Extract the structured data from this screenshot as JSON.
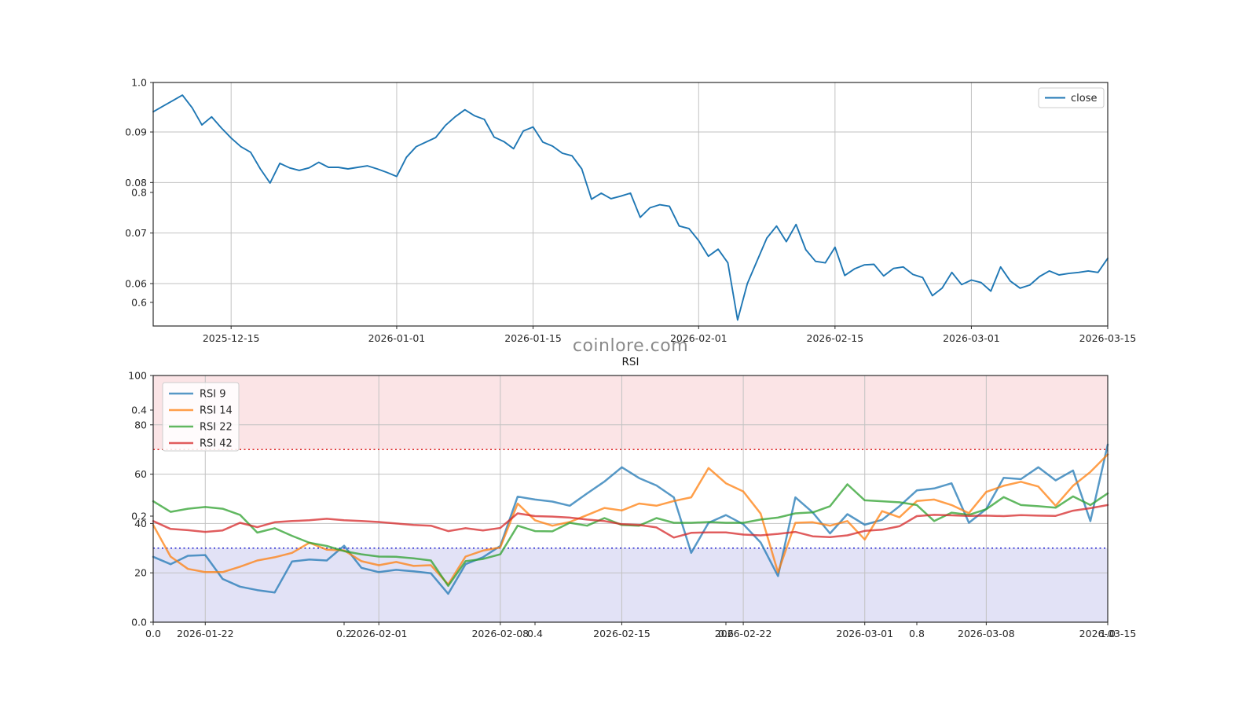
{
  "watermark": {
    "text": "coinlore.com"
  },
  "colors": {
    "close_line": "#1f77b4",
    "rsi9": "#1f77b4",
    "rsi14": "#ff7f0e",
    "rsi22": "#2ca02c",
    "rsi42": "#d62728",
    "overbought_band": "#fbe4e6",
    "oversold_band": "#e2e2f6",
    "overbought_line": "#dd2222",
    "oversold_line": "#2222cc",
    "grid": "#c2c2c2",
    "spine": "#2b2b2b",
    "tick_text": "#262626",
    "legend_border": "#cccccc"
  },
  "chart_data": [
    {
      "type": "line",
      "title": "",
      "ylabel": "",
      "xlabel": "",
      "grid": true,
      "ylim": [
        0.0516,
        0.0998
      ],
      "yticks": [
        0.09,
        0.08,
        0.07,
        0.06
      ],
      "ytick_labels": [
        "0.09",
        "0.08",
        "0.07",
        "0.06"
      ],
      "yticks_secondary": {
        "lim": [
          0.557,
          1.0
        ],
        "labels": [
          "1.0",
          "0.8",
          "0.6"
        ],
        "values": [
          1.0,
          0.8,
          0.6
        ]
      },
      "xticks": [
        "2025-12-15",
        "2026-01-01",
        "2026-01-15",
        "2026-02-01",
        "2026-02-15",
        "2026-03-01",
        "2026-03-15"
      ],
      "legend": {
        "position": "upper right",
        "entries": [
          "close"
        ]
      },
      "series": [
        {
          "name": "close",
          "color_key": "close_line",
          "dates": [
            "2025-12-07",
            "2025-12-08",
            "2025-12-09",
            "2025-12-10",
            "2025-12-11",
            "2025-12-12",
            "2025-12-13",
            "2025-12-14",
            "2025-12-15",
            "2025-12-16",
            "2025-12-17",
            "2025-12-18",
            "2025-12-19",
            "2025-12-20",
            "2025-12-21",
            "2025-12-22",
            "2025-12-23",
            "2025-12-24",
            "2025-12-25",
            "2025-12-26",
            "2025-12-27",
            "2025-12-28",
            "2025-12-29",
            "2025-12-30",
            "2025-12-31",
            "2026-01-01",
            "2026-01-02",
            "2026-01-03",
            "2026-01-04",
            "2026-01-05",
            "2026-01-06",
            "2026-01-07",
            "2026-01-08",
            "2026-01-09",
            "2026-01-10",
            "2026-01-11",
            "2026-01-12",
            "2026-01-13",
            "2026-01-14",
            "2026-01-15",
            "2026-01-16",
            "2026-01-17",
            "2026-01-18",
            "2026-01-19",
            "2026-01-20",
            "2026-01-21",
            "2026-01-22",
            "2026-01-23",
            "2026-01-24",
            "2026-01-25",
            "2026-01-26",
            "2026-01-27",
            "2026-01-28",
            "2026-01-29",
            "2026-01-30",
            "2026-01-31",
            "2026-02-01",
            "2026-02-02",
            "2026-02-03",
            "2026-02-04",
            "2026-02-05",
            "2026-02-06",
            "2026-02-07",
            "2026-02-08",
            "2026-02-09",
            "2026-02-10",
            "2026-02-11",
            "2026-02-12",
            "2026-02-13",
            "2026-02-14",
            "2026-02-15",
            "2026-02-16",
            "2026-02-17",
            "2026-02-18",
            "2026-02-19",
            "2026-02-20",
            "2026-02-21",
            "2026-02-22",
            "2026-02-23",
            "2026-02-24",
            "2026-02-25",
            "2026-02-26",
            "2026-02-27",
            "2026-02-28",
            "2026-03-01",
            "2026-03-02",
            "2026-03-03",
            "2026-03-04",
            "2026-03-05",
            "2026-03-06",
            "2026-03-07",
            "2026-03-08",
            "2026-03-09",
            "2026-03-10",
            "2026-03-11",
            "2026-03-12",
            "2026-03-13",
            "2026-03-14",
            "2026-03-15"
          ],
          "values": [
            0.094,
            0.0951,
            0.0962,
            0.0973,
            0.0948,
            0.0914,
            0.093,
            0.0908,
            0.0888,
            0.0871,
            0.086,
            0.0827,
            0.0799,
            0.0838,
            0.0829,
            0.0824,
            0.0829,
            0.084,
            0.083,
            0.083,
            0.0827,
            0.083,
            0.0833,
            0.0827,
            0.082,
            0.0812,
            0.085,
            0.0871,
            0.088,
            0.0889,
            0.0913,
            0.093,
            0.0944,
            0.0932,
            0.0925,
            0.089,
            0.0881,
            0.0867,
            0.0902,
            0.091,
            0.088,
            0.0872,
            0.0858,
            0.0853,
            0.0827,
            0.0767,
            0.0779,
            0.0768,
            0.0773,
            0.0779,
            0.0731,
            0.075,
            0.0756,
            0.0753,
            0.0714,
            0.0709,
            0.0685,
            0.0654,
            0.0668,
            0.0641,
            0.0528,
            0.06,
            0.0645,
            0.069,
            0.0714,
            0.0683,
            0.0717,
            0.0667,
            0.0644,
            0.0641,
            0.0672,
            0.0616,
            0.0629,
            0.0637,
            0.0638,
            0.0615,
            0.063,
            0.0633,
            0.0618,
            0.0612,
            0.0576,
            0.0591,
            0.0622,
            0.0598,
            0.0607,
            0.0602,
            0.0585,
            0.0633,
            0.0605,
            0.0591,
            0.0597,
            0.0614,
            0.0625,
            0.0617,
            0.062,
            0.0622,
            0.0625,
            0.0622,
            0.065
          ]
        }
      ]
    },
    {
      "type": "line",
      "title": "RSI",
      "ylabel": "",
      "xlabel": "",
      "grid": true,
      "ylim": [
        0,
        100
      ],
      "yticks": [
        100,
        80,
        60,
        40,
        20
      ],
      "ytick_labels": [
        "100",
        "80",
        "60",
        "40",
        "20"
      ],
      "yticks_secondary": {
        "labels": [
          "0.4",
          "0.2",
          "0.0"
        ],
        "values": [
          0.4,
          0.2,
          0.0
        ]
      },
      "xticks": [
        "2026-01-22",
        "2026-02-01",
        "2026-02-08",
        "2026-02-15",
        "2026-02-22",
        "2026-03-01",
        "2026-03-08",
        "2026-03-15"
      ],
      "xticks_secondary": {
        "labels": [
          "0.0",
          "0.2",
          "0.4",
          "0.6",
          "0.8",
          "1.0"
        ],
        "values": [
          0.0,
          0.2,
          0.4,
          0.6,
          0.8,
          1.0
        ]
      },
      "hlines": [
        {
          "y": 70,
          "style": "dotted",
          "color_key": "overbought_line",
          "meaning": "overbought-threshold"
        },
        {
          "y": 30,
          "style": "dotted",
          "color_key": "oversold_line",
          "meaning": "oversold-threshold"
        }
      ],
      "bands": [
        {
          "from": 70,
          "to": 100,
          "color_key": "overbought_band",
          "meaning": "overbought-zone"
        },
        {
          "from": 0,
          "to": 30,
          "color_key": "oversold_band",
          "meaning": "oversold-zone"
        }
      ],
      "legend": {
        "position": "upper left",
        "entries": [
          "RSI 9",
          "RSI 14",
          "RSI 22",
          "RSI 42"
        ]
      },
      "dates": [
        "2026-01-19",
        "2026-01-20",
        "2026-01-21",
        "2026-01-22",
        "2026-01-23",
        "2026-01-24",
        "2026-01-25",
        "2026-01-26",
        "2026-01-27",
        "2026-01-28",
        "2026-01-29",
        "2026-01-30",
        "2026-01-31",
        "2026-02-01",
        "2026-02-02",
        "2026-02-03",
        "2026-02-04",
        "2026-02-05",
        "2026-02-06",
        "2026-02-07",
        "2026-02-08",
        "2026-02-09",
        "2026-02-10",
        "2026-02-11",
        "2026-02-12",
        "2026-02-13",
        "2026-02-14",
        "2026-02-15",
        "2026-02-16",
        "2026-02-17",
        "2026-02-18",
        "2026-02-19",
        "2026-02-20",
        "2026-02-21",
        "2026-02-22",
        "2026-02-23",
        "2026-02-24",
        "2026-02-25",
        "2026-02-26",
        "2026-02-27",
        "2026-02-28",
        "2026-03-01",
        "2026-03-02",
        "2026-03-03",
        "2026-03-04",
        "2026-03-05",
        "2026-03-06",
        "2026-03-07",
        "2026-03-08",
        "2026-03-09",
        "2026-03-10",
        "2026-03-11",
        "2026-03-12",
        "2026-03-13",
        "2026-03-14",
        "2026-03-15"
      ],
      "series": [
        {
          "name": "RSI 9",
          "color_key": "rsi9",
          "values": [
            26.5,
            23.5,
            26.9,
            27.2,
            17.5,
            14.4,
            13.0,
            12.0,
            24.6,
            25.4,
            25.0,
            31.0,
            22.0,
            20.3,
            21.2,
            20.6,
            19.8,
            11.5,
            23.5,
            26.3,
            30.9,
            50.9,
            49.7,
            48.9,
            47.2,
            52.2,
            57.0,
            62.8,
            58.4,
            55.4,
            50.6,
            28.1,
            40.3,
            43.4,
            39.7,
            32.3,
            18.7,
            50.6,
            44.5,
            36.0,
            43.8,
            39.5,
            41.5,
            47.0,
            53.4,
            54.2,
            56.3,
            40.3,
            45.9,
            58.5,
            58.0,
            62.8,
            57.5,
            61.5,
            41.0,
            72.0
          ]
        },
        {
          "name": "RSI 14",
          "color_key": "rsi14",
          "values": [
            39.4,
            26.6,
            21.6,
            20.3,
            20.3,
            22.5,
            25.0,
            26.3,
            28.1,
            32.2,
            29.4,
            29.1,
            24.7,
            23.1,
            24.4,
            22.8,
            23.1,
            15.3,
            26.6,
            29.0,
            30.3,
            48.1,
            41.3,
            39.1,
            40.6,
            43.4,
            46.3,
            45.3,
            48.1,
            47.2,
            49.1,
            50.6,
            62.5,
            56.3,
            53.0,
            44.0,
            20.2,
            40.3,
            40.5,
            39.1,
            41.0,
            33.5,
            45.0,
            42.5,
            49.1,
            49.7,
            47.5,
            44.2,
            52.8,
            55.3,
            56.9,
            55.0,
            47.2,
            55.3,
            60.9,
            68.0
          ]
        },
        {
          "name": "RSI 22",
          "color_key": "rsi22",
          "values": [
            49.0,
            44.7,
            46.0,
            46.7,
            46.0,
            43.5,
            36.3,
            38.1,
            35.0,
            32.2,
            30.9,
            28.8,
            27.5,
            26.6,
            26.5,
            25.9,
            25.0,
            14.7,
            24.7,
            25.6,
            27.5,
            39.1,
            36.9,
            36.8,
            40.3,
            39.1,
            42.2,
            39.4,
            39.1,
            42.2,
            40.3,
            40.3,
            40.6,
            40.3,
            40.3,
            41.6,
            42.4,
            44.1,
            44.5,
            47.0,
            55.9,
            49.4,
            49.0,
            48.6,
            47.5,
            41.0,
            44.4,
            43.5,
            45.8,
            50.7,
            47.5,
            47.0,
            46.4,
            51.0,
            47.5,
            52.2
          ]
        },
        {
          "name": "RSI 42",
          "color_key": "rsi42",
          "values": [
            41.0,
            37.8,
            37.3,
            36.6,
            37.2,
            40.3,
            38.5,
            40.5,
            41.0,
            41.3,
            41.9,
            41.3,
            41.0,
            40.6,
            40.0,
            39.4,
            39.1,
            36.9,
            38.1,
            37.2,
            38.2,
            44.1,
            43.0,
            42.8,
            42.4,
            41.6,
            41.0,
            39.7,
            39.4,
            38.4,
            34.3,
            36.2,
            36.4,
            36.4,
            35.5,
            35.2,
            35.8,
            36.6,
            34.8,
            34.5,
            35.2,
            37.0,
            37.5,
            38.9,
            43.0,
            43.5,
            43.3,
            43.1,
            43.2,
            43.0,
            43.4,
            43.2,
            43.1,
            45.2,
            46.2,
            47.5
          ]
        }
      ]
    }
  ]
}
